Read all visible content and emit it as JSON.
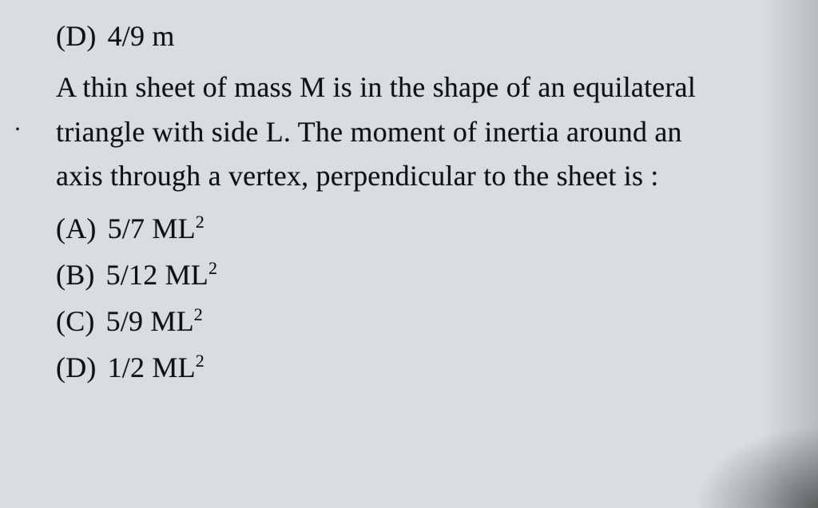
{
  "prev_option": {
    "label": "(D)",
    "text": "4/9 m"
  },
  "stem": {
    "line1": "A thin sheet of mass M is in the shape of an equilateral",
    "line2": "triangle with side L. The moment of inertia around an",
    "line3": "axis through a vertex, perpendicular to the sheet is :"
  },
  "options": [
    {
      "label": "(A)",
      "value": "5/7 ML",
      "exp": "2"
    },
    {
      "label": "(B)",
      "value": "5/12 ML",
      "exp": "2"
    },
    {
      "label": "(C)",
      "value": "5/9 ML",
      "exp": "2"
    },
    {
      "label": "(D)",
      "value": "1/2 ML",
      "exp": "2"
    }
  ],
  "side_mark": "."
}
